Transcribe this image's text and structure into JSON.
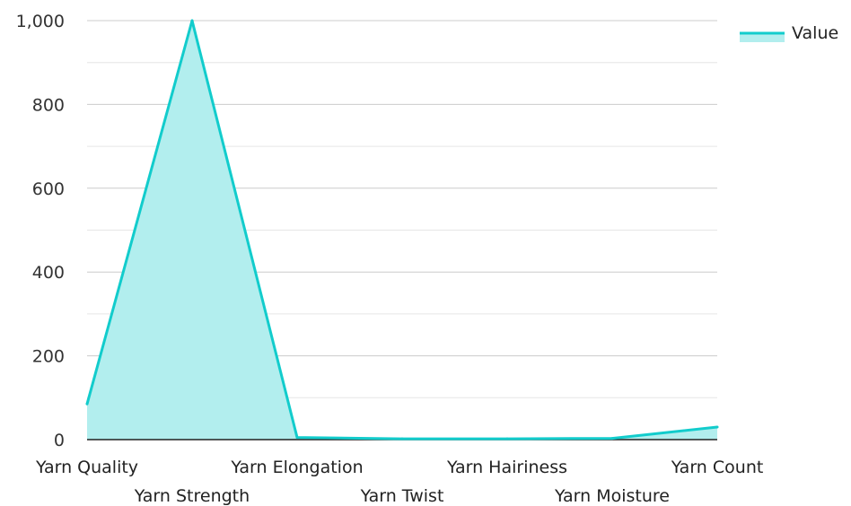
{
  "chart_data": {
    "type": "area",
    "categories": [
      "Yarn Quality",
      "Yarn Strength",
      "Yarn Elongation",
      "Yarn Twist",
      "Yarn Hairiness",
      "Yarn Moisture",
      "Yarn Count"
    ],
    "series": [
      {
        "name": "Value",
        "values": [
          85,
          1000,
          5,
          2,
          2,
          3,
          30
        ]
      }
    ],
    "ylim": [
      0,
      1000
    ],
    "yticks": [
      0,
      200,
      400,
      600,
      800,
      1000
    ],
    "ytick_labels": [
      "0",
      "200",
      "400",
      "600",
      "800",
      "1,000"
    ],
    "grid": true,
    "legend": "top-right",
    "colors": {
      "line": "#12cccc",
      "fill": "#b2eeee",
      "grid": "#cccccc",
      "axis": "#222222"
    }
  }
}
